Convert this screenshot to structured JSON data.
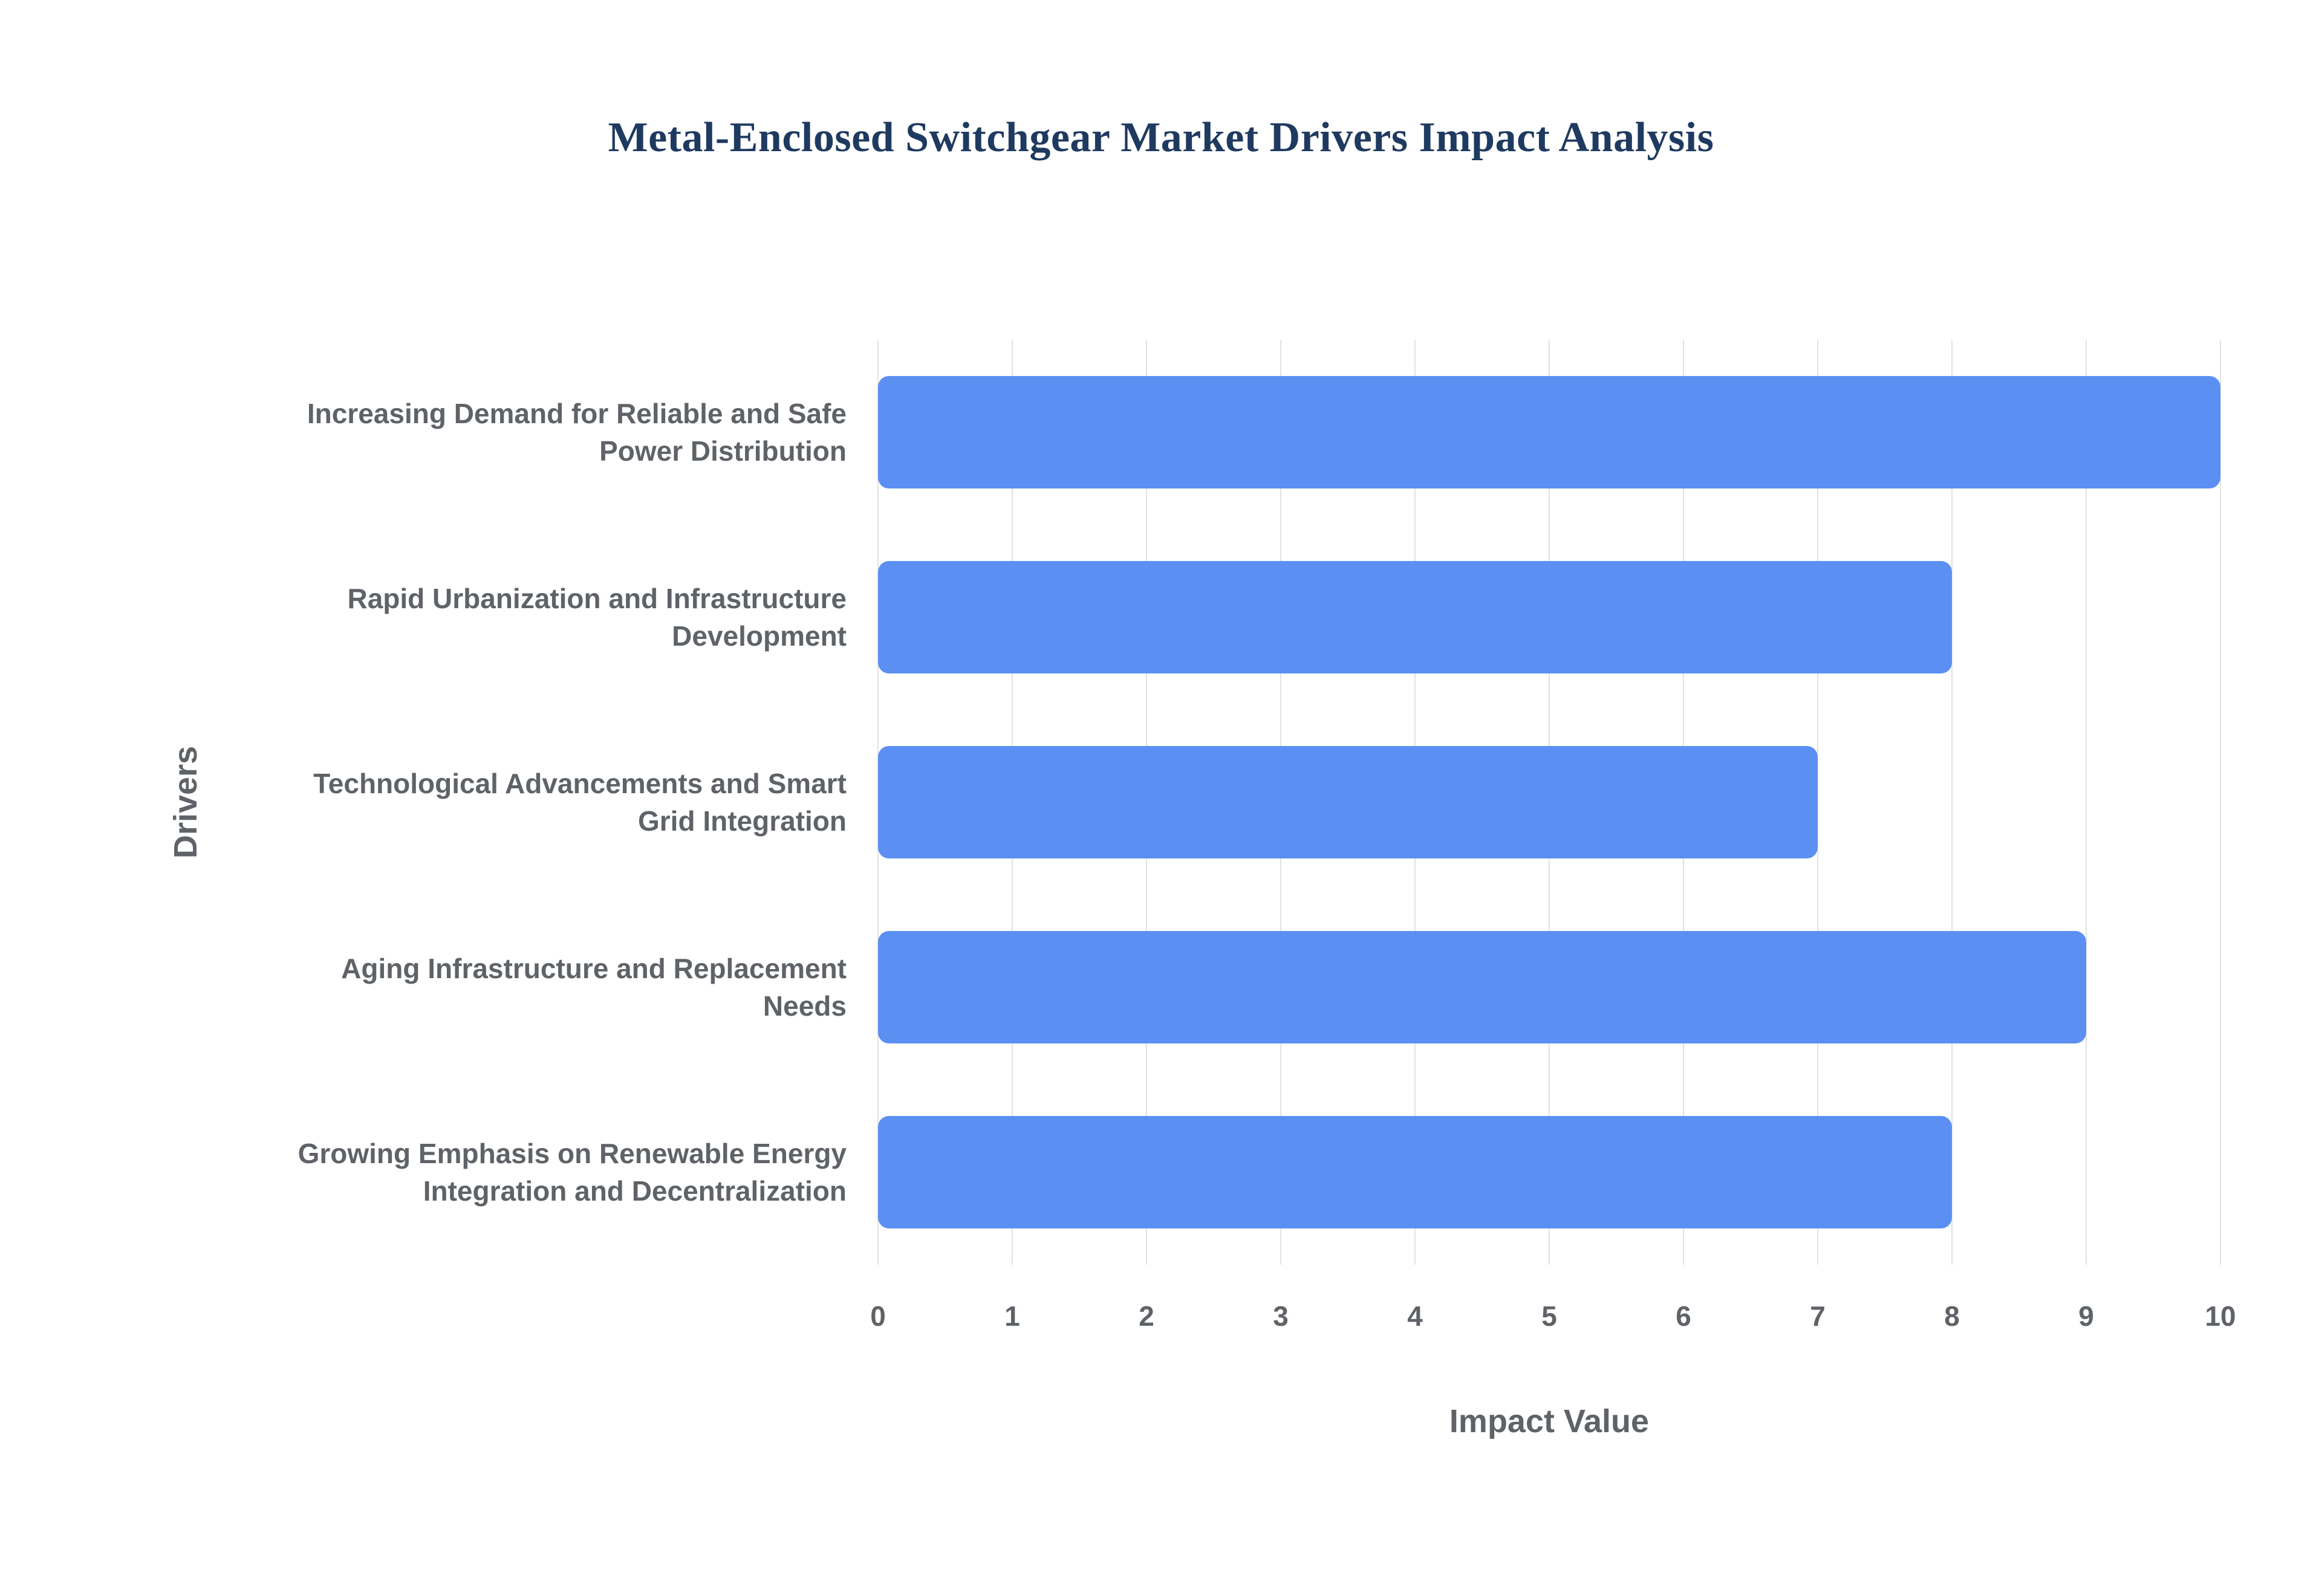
{
  "chart_data": {
    "type": "bar",
    "orientation": "horizontal",
    "title": "Metal-Enclosed Switchgear Market Drivers Impact Analysis",
    "categories": [
      "Increasing Demand for Reliable and Safe Power Distribution",
      "Rapid Urbanization and Infrastructure Development",
      "Technological Advancements and Smart Grid Integration",
      "Aging Infrastructure and Replacement Needs",
      "Growing Emphasis on Renewable Energy Integration and Decentralization"
    ],
    "values": [
      10,
      8,
      7,
      9,
      8
    ],
    "xlabel": "Impact Value",
    "ylabel": "Drivers",
    "xlim": [
      0,
      10
    ],
    "xticks": [
      0,
      1,
      2,
      3,
      4,
      5,
      6,
      7,
      8,
      9,
      10
    ],
    "bar_color": "#5b8ff2",
    "grid": true,
    "legend_position": "none",
    "background_color": "#ffffff",
    "title_color": "#1f3a60",
    "label_color": "#5f6368",
    "grid_color": "#e2e2e2"
  }
}
